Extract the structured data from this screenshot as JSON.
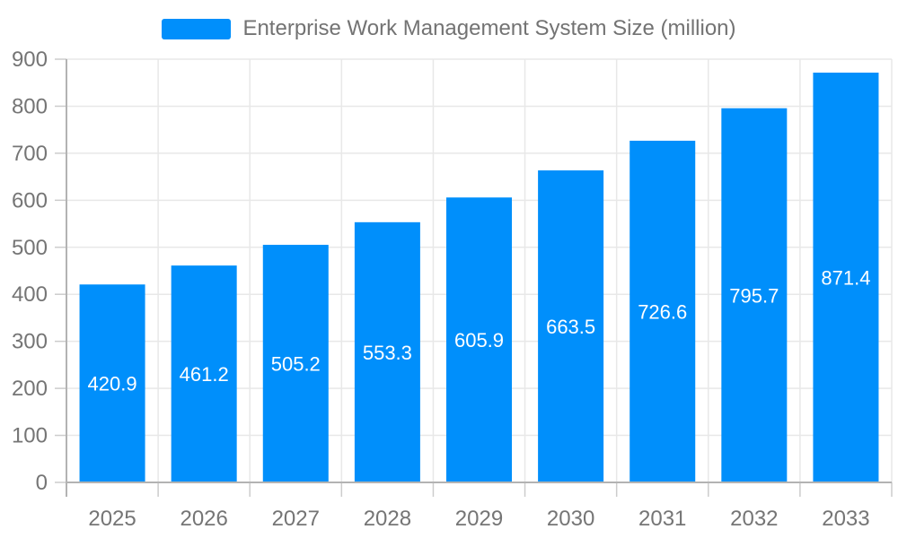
{
  "chart_data": {
    "type": "bar",
    "title": "Enterprise Work Management System Size (million)",
    "legend_position": "top",
    "categories": [
      "2025",
      "2026",
      "2027",
      "2028",
      "2029",
      "2030",
      "2031",
      "2032",
      "2033"
    ],
    "series": [
      {
        "name": "Enterprise Work Management System Size (million)",
        "values": [
          420.9,
          461.2,
          505.2,
          553.3,
          605.9,
          663.5,
          726.6,
          795.7,
          871.4
        ]
      }
    ],
    "xlabel": "",
    "ylabel": "",
    "ylim": [
      0,
      900
    ],
    "ytick_step": 100,
    "grid": true,
    "value_labels": "inside-center",
    "colors": {
      "bar": "#008ffb",
      "value_label": "#ffffff",
      "axis_label": "#757575",
      "legend_text": "#737373",
      "grid_line": "#e8e8e8",
      "axis_line": "#b3b3b3",
      "tick": "#cccccc",
      "background": "#ffffff"
    }
  }
}
